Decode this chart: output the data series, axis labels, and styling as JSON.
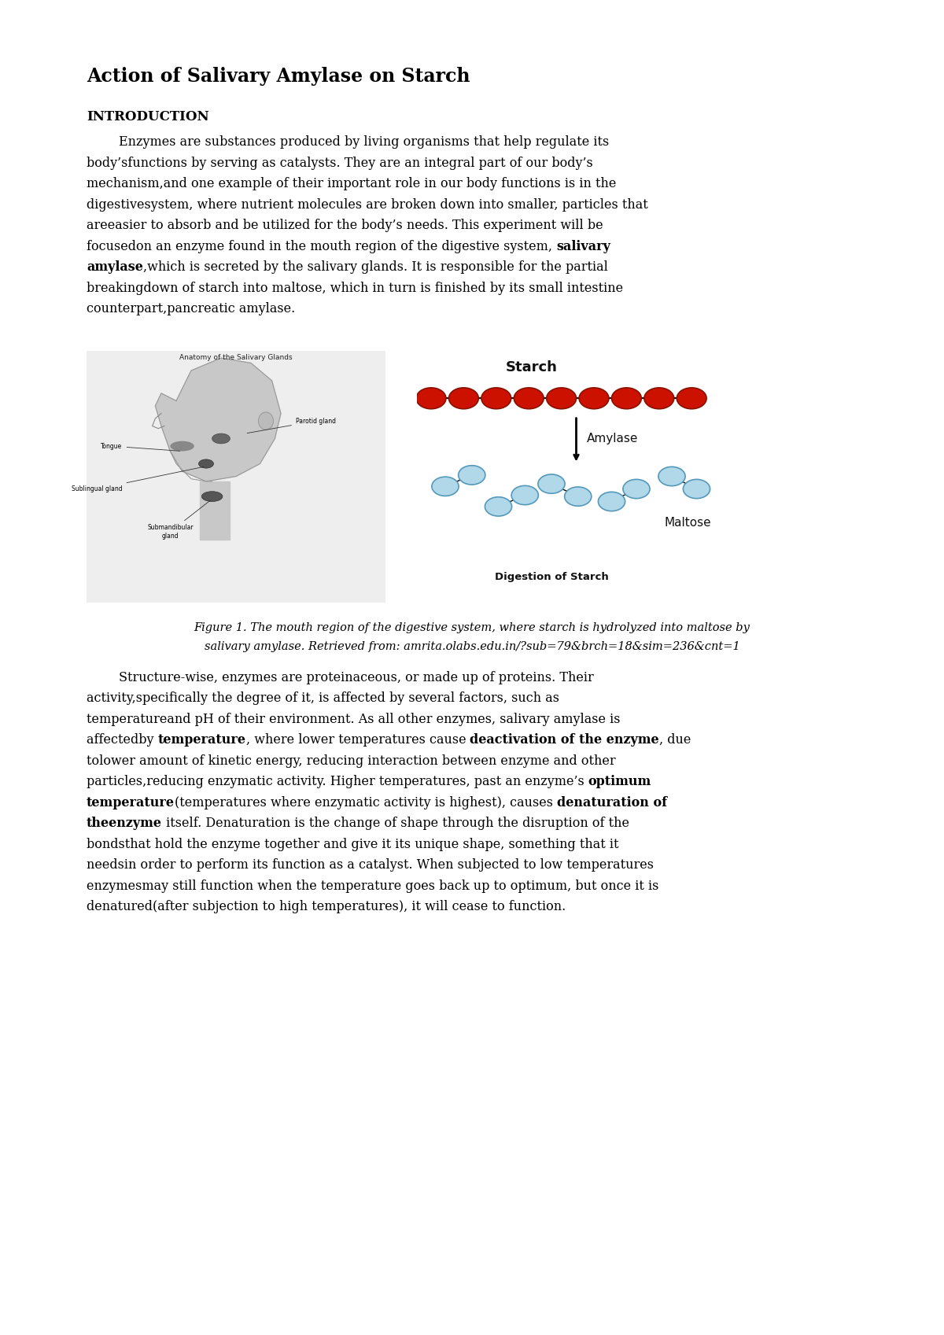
{
  "title": "Action of Salivary Amylase on Starch",
  "intro_heading": "INTRODUCTION",
  "paragraph1_parts": [
    {
      "text": "        Enzymes are substances produced by living organisms that help regulate its body’s functions by serving as catalysts. They are an integral part of our body’s mechanism, and one example of their important role in our body functions is in the digestive system, where nutrient molecules are broken down into smaller, particles that are easier to absorb and be utilized for the body’s needs. This experiment will be focused on an enzyme found in the mouth region of the digestive system, ",
      "bold": false
    },
    {
      "text": "salivary amylase",
      "bold": true
    },
    {
      "text": ", which is secreted by the salivary glands. It is responsible for the partial breaking down of starch into maltose, which in turn is finished by its small intestine counterpart, pancreatic amylase.",
      "bold": false
    }
  ],
  "caption_line1": "Figure 1. The mouth region of the digestive system, where starch is hydrolyzed into maltose by",
  "caption_line2": "salivary amylase. Retrieved from: amrita.olabs.edu.in/?sub=79&brch=18&sim=236&cnt=1",
  "paragraph2_parts": [
    {
      "text": "        Structure-wise, enzymes are proteinaceous, or made up of proteins. Their activity, specifically the degree of it, is affected by several factors, such as temperature and pH of their environment. As all other enzymes, salivary amylase is affected by ",
      "bold": false
    },
    {
      "text": "temperature",
      "bold": true
    },
    {
      "text": ", where lower temperatures cause ",
      "bold": false
    },
    {
      "text": "deactivation of the enzyme",
      "bold": true
    },
    {
      "text": ", due to lower amount of kinetic energy, reducing interaction between enzyme and other particles, reducing enzymatic activity. Higher temperatures, past an enzyme’s ",
      "bold": false
    },
    {
      "text": "optimum temperature",
      "bold": true
    },
    {
      "text": " (temperatures where enzymatic activity is highest), causes ",
      "bold": false
    },
    {
      "text": "denaturation of the enzyme",
      "bold": true
    },
    {
      "text": " itself. Denaturation is the change of shape through the disruption of the bonds that hold the enzyme together and give it its unique shape, something that it needs in order to perform its function as a catalyst. When subjected to low temperatures enzymes may still function when the temperature goes back up to optimum, but once it is denatured (after subjection to high temperatures), it will cease to function.",
      "bold": false
    }
  ],
  "background_color": "#ffffff",
  "text_color": "#000000"
}
